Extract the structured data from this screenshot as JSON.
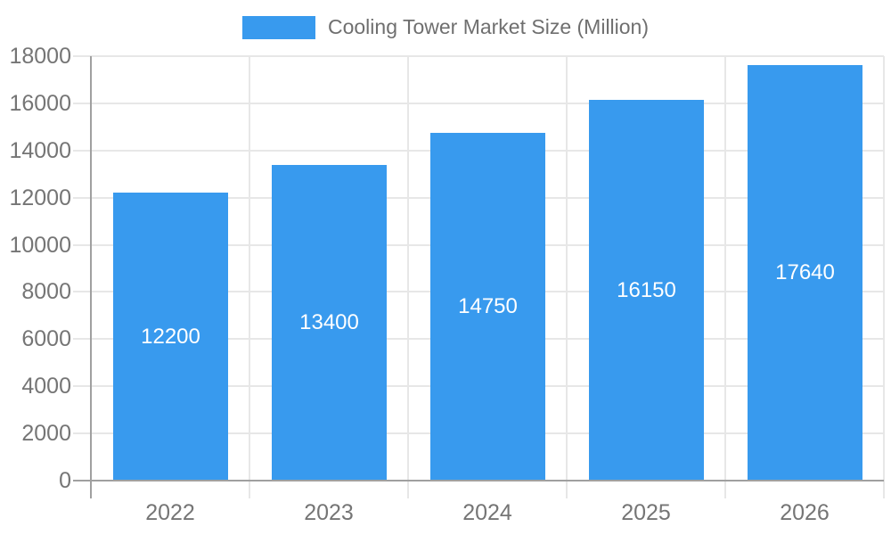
{
  "chart_data": {
    "type": "bar",
    "title": "Cooling Tower Market Size (Million)",
    "legend": {
      "position": "top",
      "label": "Cooling Tower Market Size (Million)"
    },
    "categories": [
      "2022",
      "2023",
      "2024",
      "2025",
      "2026"
    ],
    "series": [
      {
        "name": "Cooling Tower Market Size (Million)",
        "values": [
          12200,
          13400,
          14750,
          16150,
          17640
        ]
      }
    ],
    "value_labels": [
      "12200",
      "13400",
      "14750",
      "16150",
      "17640"
    ],
    "xlabel": "",
    "ylabel": "",
    "ylim": [
      0,
      18000
    ],
    "ytick_step": 2000,
    "ytick_labels": [
      "0",
      "2000",
      "4000",
      "6000",
      "8000",
      "10000",
      "12000",
      "14000",
      "16000",
      "18000"
    ],
    "grid": true,
    "colors": {
      "bar": "#389aee",
      "grid": "#e7e7e7",
      "axis": "#a0a0a0",
      "text": "#757575",
      "bar_label": "#ffffff",
      "background": "#ffffff"
    }
  }
}
